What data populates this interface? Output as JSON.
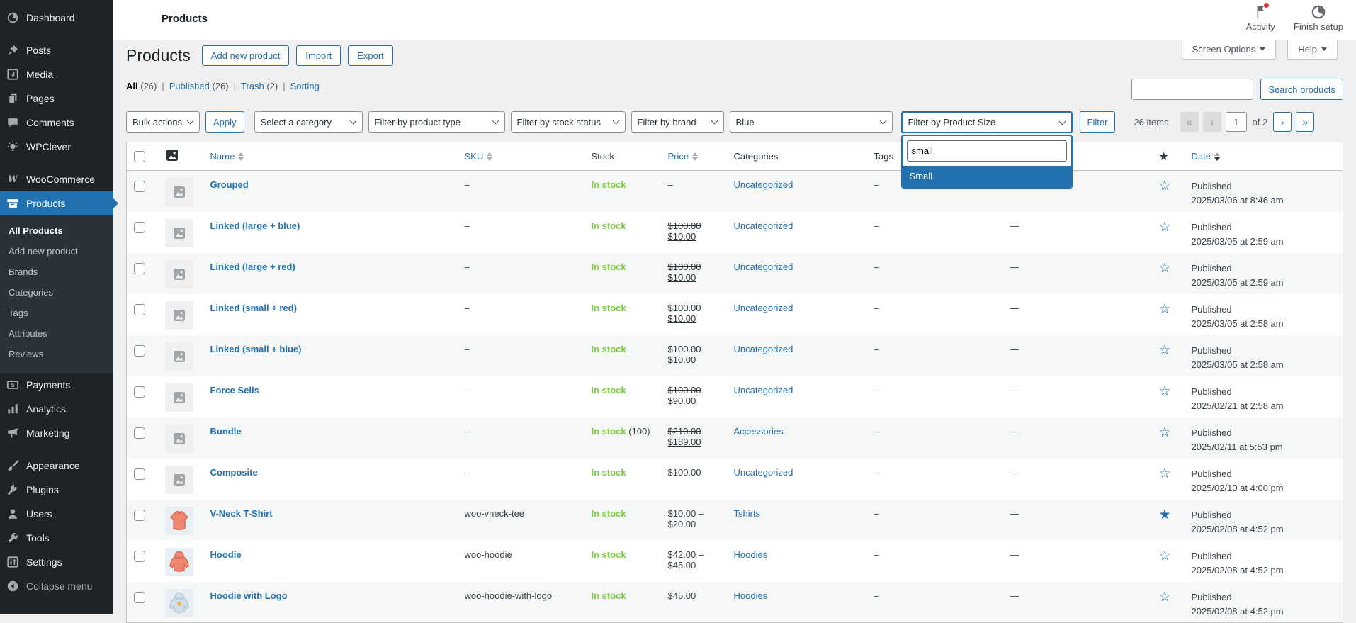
{
  "topbar": {
    "title": "Products",
    "actions": [
      {
        "label": "Activity",
        "icon": "flag-icon"
      },
      {
        "label": "Finish setup",
        "icon": "pie-icon"
      }
    ]
  },
  "screen_meta": {
    "screen_options_label": "Screen Options",
    "help_label": "Help"
  },
  "sidebar": {
    "items": [
      {
        "label": "Dashboard",
        "icon": "dashboard-icon"
      },
      {
        "label": "Posts",
        "icon": "pin-icon",
        "gap_before": true
      },
      {
        "label": "Media",
        "icon": "media-icon"
      },
      {
        "label": "Pages",
        "icon": "pages-icon"
      },
      {
        "label": "Comments",
        "icon": "comments-icon"
      },
      {
        "label": "WPClever",
        "icon": "bulb-icon"
      },
      {
        "label": "WooCommerce",
        "icon": "woocommerce-icon",
        "gap_before": true
      },
      {
        "label": "Products",
        "icon": "products-icon",
        "active": true,
        "submenu": [
          "All Products",
          "Add new product",
          "Brands",
          "Categories",
          "Tags",
          "Attributes",
          "Reviews"
        ],
        "submenu_current": "All Products"
      },
      {
        "label": "Payments",
        "icon": "payments-icon"
      },
      {
        "label": "Analytics",
        "icon": "analytics-icon"
      },
      {
        "label": "Marketing",
        "icon": "megaphone-icon"
      },
      {
        "label": "Appearance",
        "icon": "appearance-icon",
        "gap_before": true
      },
      {
        "label": "Plugins",
        "icon": "plugin-icon"
      },
      {
        "label": "Users",
        "icon": "users-icon"
      },
      {
        "label": "Tools",
        "icon": "tools-icon"
      },
      {
        "label": "Settings",
        "icon": "settings-icon"
      },
      {
        "label": "Collapse menu",
        "icon": "collapse-icon",
        "collapse": true
      }
    ]
  },
  "page": {
    "title": "Products",
    "action_buttons": [
      "Add new product",
      "Import",
      "Export"
    ],
    "views": [
      {
        "label": "All",
        "count": " (26)",
        "current": true
      },
      {
        "label": "Published",
        "count": " (26)"
      },
      {
        "label": "Trash",
        "count": " (2)"
      },
      {
        "label": "Sorting",
        "count": ""
      }
    ],
    "search": {
      "input_value": "",
      "button_label": "Search products"
    }
  },
  "tablenav": {
    "bulk_label": "Bulk actions",
    "apply_label": "Apply",
    "selects": [
      "Select a category",
      "Filter by product type",
      "Filter by stock status",
      "Filter by brand",
      "Blue"
    ],
    "size_filter": {
      "display_label": "Filter by Product Size",
      "search_value": "small",
      "option": "Small"
    },
    "filter_button_label": "Filter",
    "items_count": "26 items",
    "pagination": {
      "first": "«",
      "prev": "‹",
      "page": "1",
      "of": "of 2",
      "next": "›",
      "last": "»"
    }
  },
  "table": {
    "published_label": "Published",
    "headers": {
      "name": "Name",
      "sku": "SKU",
      "stock": "Stock",
      "price": "Price",
      "categories": "Categories",
      "tags": "Tags",
      "star": "★",
      "date": "Date"
    },
    "rows": [
      {
        "name": "Grouped",
        "sku": "–",
        "stock": "In stock",
        "stock_suffix": "",
        "price": [
          {
            "text": "–",
            "style": "plain"
          }
        ],
        "category": "Uncategorized",
        "tags_text": "–",
        "brand_text": "",
        "starred": false,
        "date": "2025/03/06 at 8:46 am",
        "thumb": "placeholder-image-icon"
      },
      {
        "name": "Linked (large + blue)",
        "sku": "–",
        "stock": "In stock",
        "stock_suffix": "",
        "price": [
          {
            "text": "$100.00",
            "style": "del"
          },
          {
            "text": "$10.00",
            "style": "ins"
          }
        ],
        "category": "Uncategorized",
        "tags_text": "–",
        "brand_text": "—",
        "starred": false,
        "date": "2025/03/05 at 2:59 am",
        "thumb": "placeholder-image-icon"
      },
      {
        "name": "Linked (large + red)",
        "sku": "–",
        "stock": "In stock",
        "stock_suffix": "",
        "price": [
          {
            "text": "$100.00",
            "style": "del"
          },
          {
            "text": "$10.00",
            "style": "ins"
          }
        ],
        "category": "Uncategorized",
        "tags_text": "–",
        "brand_text": "—",
        "starred": false,
        "date": "2025/03/05 at 2:59 am",
        "thumb": "placeholder-image-icon"
      },
      {
        "name": "Linked (small + red)",
        "sku": "–",
        "stock": "In stock",
        "stock_suffix": "",
        "price": [
          {
            "text": "$100.00",
            "style": "del"
          },
          {
            "text": "$10.00",
            "style": "ins"
          }
        ],
        "category": "Uncategorized",
        "tags_text": "–",
        "brand_text": "—",
        "starred": false,
        "date": "2025/03/05 at 2:58 am",
        "thumb": "placeholder-image-icon"
      },
      {
        "name": "Linked (small + blue)",
        "sku": "–",
        "stock": "In stock",
        "stock_suffix": "",
        "price": [
          {
            "text": "$100.00",
            "style": "del"
          },
          {
            "text": "$10.00",
            "style": "ins"
          }
        ],
        "category": "Uncategorized",
        "tags_text": "–",
        "brand_text": "—",
        "starred": false,
        "date": "2025/03/05 at 2:58 am",
        "thumb": "placeholder-image-icon"
      },
      {
        "name": "Force Sells",
        "sku": "–",
        "stock": "In stock",
        "stock_suffix": "",
        "price": [
          {
            "text": "$100.00",
            "style": "del"
          },
          {
            "text": "$90.00",
            "style": "ins"
          }
        ],
        "category": "Uncategorized",
        "tags_text": "–",
        "brand_text": "—",
        "starred": false,
        "date": "2025/02/21 at 2:58 am",
        "thumb": "placeholder-image-icon"
      },
      {
        "name": "Bundle",
        "sku": "–",
        "stock": "In stock",
        "stock_suffix": " (100)",
        "price": [
          {
            "text": "$210.00",
            "style": "del"
          },
          {
            "text": "$189.00",
            "style": "ins"
          }
        ],
        "category": "Accessories",
        "tags_text": "–",
        "brand_text": "—",
        "starred": false,
        "date": "2025/02/11 at 5:53 pm",
        "thumb": "placeholder-image-icon"
      },
      {
        "name": "Composite",
        "sku": "–",
        "stock": "In stock",
        "stock_suffix": "",
        "price": [
          {
            "text": "$100.00",
            "style": "plain"
          }
        ],
        "category": "Uncategorized",
        "tags_text": "–",
        "brand_text": "—",
        "starred": false,
        "date": "2025/02/10 at 4:00 pm",
        "thumb": "placeholder-image-icon"
      },
      {
        "name": "V-Neck T-Shirt",
        "sku": "woo-vneck-tee",
        "stock": "In stock",
        "stock_suffix": "",
        "price": [
          {
            "text": "$10.00 – $20.00",
            "style": "plain"
          }
        ],
        "category": "Tshirts",
        "tags_text": "–",
        "brand_text": "—",
        "starred": true,
        "date": "2025/02/08 at 4:52 pm",
        "thumb": "tshirt-image"
      },
      {
        "name": "Hoodie",
        "sku": "woo-hoodie",
        "stock": "In stock",
        "stock_suffix": "",
        "price": [
          {
            "text": "$42.00 – $45.00",
            "style": "plain"
          }
        ],
        "category": "Hoodies",
        "tags_text": "–",
        "brand_text": "—",
        "starred": false,
        "date": "2025/02/08 at 4:52 pm",
        "thumb": "hoodie-red-image"
      },
      {
        "name": "Hoodie with Logo",
        "sku": "woo-hoodie-with-logo",
        "stock": "In stock",
        "stock_suffix": "",
        "price": [
          {
            "text": "$45.00",
            "style": "plain"
          }
        ],
        "category": "Hoodies",
        "tags_text": "–",
        "brand_text": "—",
        "starred": false,
        "date": "2025/02/08 at 4:52 pm",
        "thumb": "hoodie-blue-image"
      }
    ]
  },
  "colors": {
    "accent_blue": "#2271b1",
    "in_stock_green": "#7ad03a",
    "alert_red": "#d63638",
    "sidebar_bg": "#1d2327",
    "submenu_bg": "#2c3338"
  }
}
